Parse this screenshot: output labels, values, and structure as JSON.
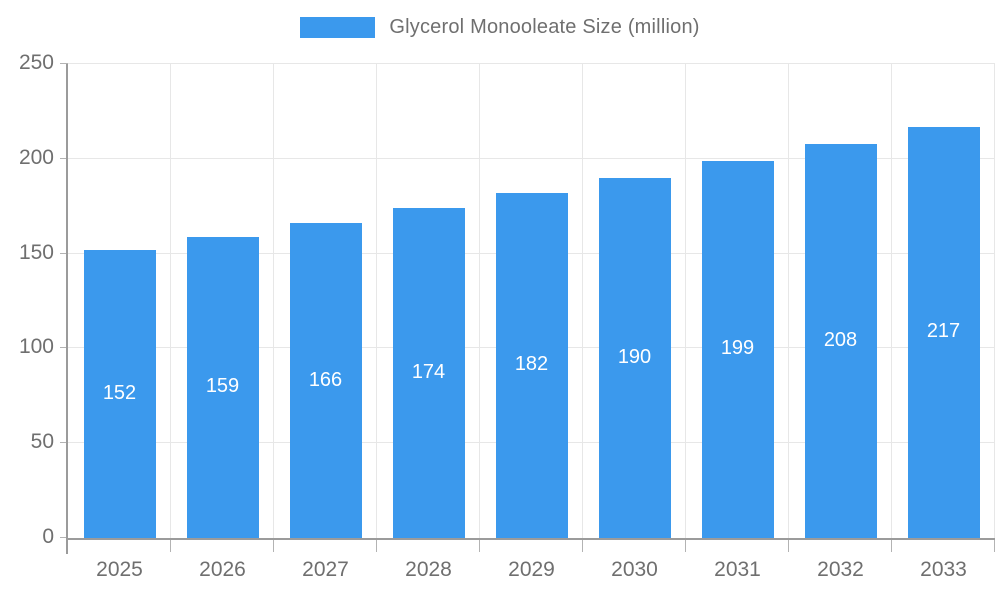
{
  "legend": {
    "label": "Glycerol Monooleate Size (million)"
  },
  "chart_data": {
    "type": "bar",
    "title": "",
    "xlabel": "",
    "ylabel": "",
    "categories": [
      "2025",
      "2026",
      "2027",
      "2028",
      "2029",
      "2030",
      "2031",
      "2032",
      "2033"
    ],
    "values": [
      152,
      159,
      166,
      174,
      182,
      190,
      199,
      208,
      217
    ],
    "series_name": "Glycerol Monooleate Size (million)",
    "ylim": [
      0,
      250
    ],
    "yticks": [
      0,
      50,
      100,
      150,
      200,
      250
    ],
    "grid": true,
    "legend_position": "top-center",
    "bar_color": "#3b99ed",
    "value_label_color": "#ffffff",
    "axis_text_color": "#6f6f6f",
    "gridline_color": "#e7e7e7",
    "axis_line_color": "#9b9b9b"
  }
}
